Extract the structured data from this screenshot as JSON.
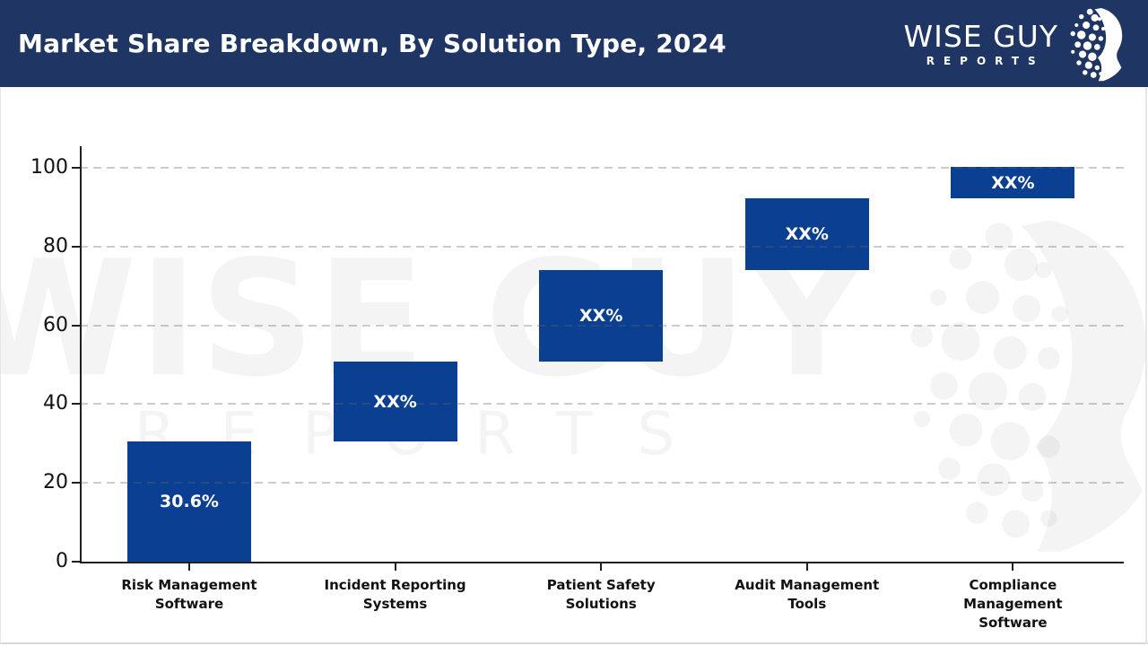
{
  "header": {
    "title": "Market Share Breakdown, By Solution Type, 2024",
    "logo": {
      "wordmark": "WISE GUY",
      "subtext": "REPORTS"
    }
  },
  "watermark": {
    "wordmark": "WISE GUY",
    "subtext": "REPORTS"
  },
  "colors": {
    "header_background": "#1f3563",
    "bar_fill": "#0b3f92",
    "bar_label_text": "#ffffff",
    "gridline": "#d6d6d6",
    "axis": "#202020"
  },
  "chart_data": {
    "type": "bar",
    "subtype": "waterfall-floating-bars",
    "title": "Market Share Breakdown, By Solution Type, 2024",
    "categories": [
      "Risk Management\nSoftware",
      "Incident Reporting\nSystems",
      "Patient Safety\nSolutions",
      "Audit Management\nTools",
      "Compliance\nManagement\nSoftware"
    ],
    "segments": [
      {
        "category": "Risk Management Software",
        "start": 0,
        "end": 30.6,
        "label": "30.6%"
      },
      {
        "category": "Incident Reporting Systems",
        "start": 30.6,
        "end": 50.7,
        "label": "XX%"
      },
      {
        "category": "Patient Safety Solutions",
        "start": 50.7,
        "end": 74.1,
        "label": "XX%"
      },
      {
        "category": "Audit Management Tools",
        "start": 74.1,
        "end": 92.3,
        "label": "XX%"
      },
      {
        "category": "Compliance Management Software",
        "start": 92.3,
        "end": 100.2,
        "label": "XX%"
      }
    ],
    "yticks": [
      0,
      20,
      40,
      60,
      80,
      100
    ],
    "ylim": [
      0,
      105.5
    ],
    "xlabel": "",
    "ylabel": "",
    "grid": "horizontal-dashed-over-bars",
    "legend": "none",
    "bar_color": "#0b3f92",
    "bar_label_color": "#ffffff"
  }
}
